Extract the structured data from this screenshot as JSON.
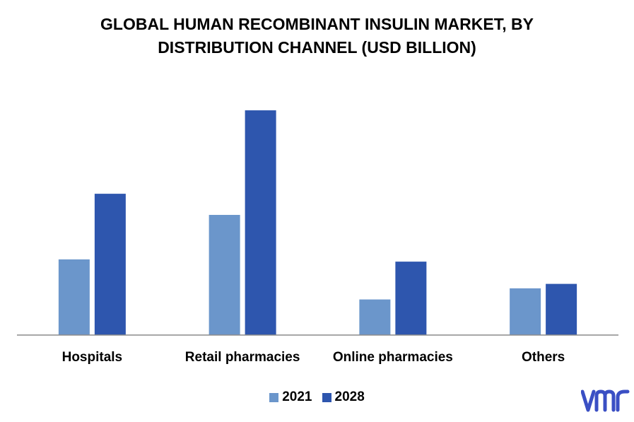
{
  "chart_data": {
    "type": "bar",
    "title_lines": [
      "GLOBAL HUMAN RECOMBINANT INSULIN MARKET, BY",
      "DISTRIBUTION CHANNEL (USD BILLION)"
    ],
    "categories": [
      "Hospitals",
      "Retail pharmacies",
      "Online pharmacies",
      "Others"
    ],
    "series": [
      {
        "name": "2021",
        "values": [
          3.4,
          5.4,
          1.6,
          2.1
        ],
        "color": "#6b96cb"
      },
      {
        "name": "2028",
        "values": [
          6.35,
          10.1,
          3.3,
          2.3
        ],
        "color": "#2e56ae"
      }
    ],
    "ylim": [
      0,
      11.5
    ],
    "grid": false,
    "legend_position": "bottom"
  },
  "logo": {
    "text": "vmr",
    "color": "#3a4fc4"
  }
}
